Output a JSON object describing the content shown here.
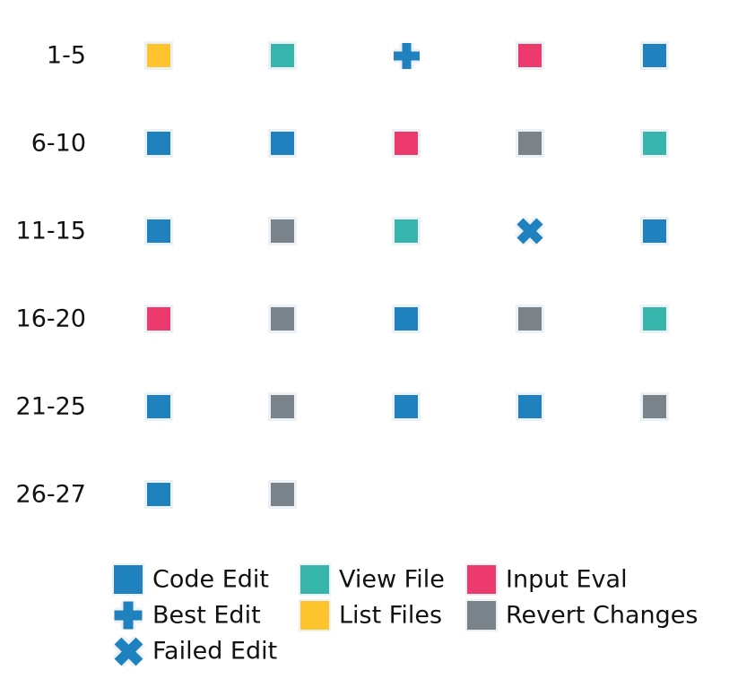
{
  "chart_data": {
    "type": "scatter",
    "description_of_axes": {
      "row_tick_labels": [
        "1-5",
        "6-10",
        "11-15",
        "16-20",
        "21-25",
        "26-27"
      ],
      "columns_per_row": 5,
      "grid": false,
      "legend_position": "bottom"
    },
    "rows": [
      {
        "label": "1-5",
        "actions": [
          "list_files",
          "view_file",
          "best_edit",
          "input_eval",
          "code_edit"
        ]
      },
      {
        "label": "6-10",
        "actions": [
          "code_edit",
          "code_edit",
          "input_eval",
          "revert_changes",
          "view_file"
        ]
      },
      {
        "label": "11-15",
        "actions": [
          "code_edit",
          "revert_changes",
          "view_file",
          "failed_edit",
          "code_edit"
        ]
      },
      {
        "label": "16-20",
        "actions": [
          "input_eval",
          "revert_changes",
          "code_edit",
          "revert_changes",
          "view_file"
        ]
      },
      {
        "label": "21-25",
        "actions": [
          "code_edit",
          "revert_changes",
          "code_edit",
          "code_edit",
          "revert_changes"
        ]
      },
      {
        "label": "26-27",
        "actions": [
          "code_edit",
          "revert_changes"
        ]
      }
    ],
    "legend": [
      {
        "key": "code_edit",
        "label": "Code Edit",
        "marker": "square",
        "color": "#1f82be"
      },
      {
        "key": "view_file",
        "label": "View File",
        "marker": "square",
        "color": "#38b6ae"
      },
      {
        "key": "input_eval",
        "label": "Input Eval",
        "marker": "square",
        "color": "#ec3a6f"
      },
      {
        "key": "best_edit",
        "label": "Best Edit",
        "marker": "plus",
        "color": "#1f82be"
      },
      {
        "key": "list_files",
        "label": "List Files",
        "marker": "square",
        "color": "#fec42d"
      },
      {
        "key": "revert_changes",
        "label": "Revert Changes",
        "marker": "square",
        "color": "#7a828a"
      },
      {
        "key": "failed_edit",
        "label": "Failed Edit",
        "marker": "x",
        "color": "#1f82be"
      }
    ],
    "colors": {
      "background": "#ffffff",
      "marker_edge_halo": "#ecf1f6",
      "text": "#111111"
    }
  }
}
